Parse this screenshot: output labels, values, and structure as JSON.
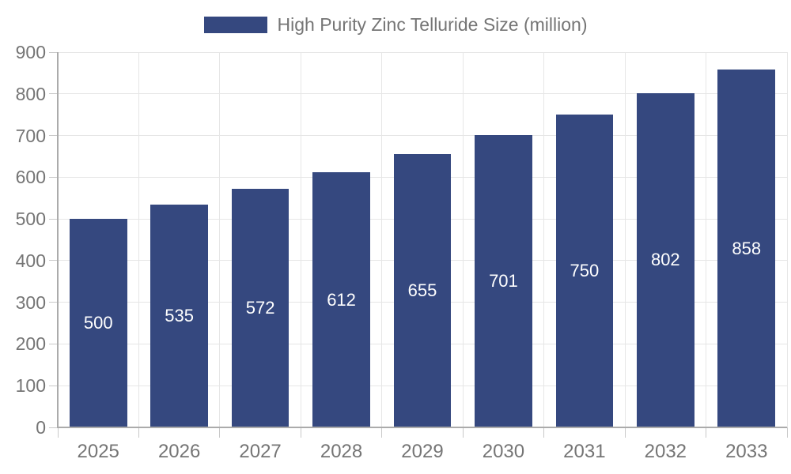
{
  "chart_data": {
    "type": "bar",
    "title": "",
    "legend": {
      "label": "High Purity Zinc Telluride Size (million)",
      "position": "top",
      "swatch_color": "#35487F"
    },
    "categories": [
      "2025",
      "2026",
      "2027",
      "2028",
      "2029",
      "2030",
      "2031",
      "2032",
      "2033"
    ],
    "values": [
      500,
      535,
      572,
      612,
      655,
      701,
      750,
      802,
      858
    ],
    "xlabel": "",
    "ylabel": "",
    "ylim": [
      0,
      900
    ],
    "ytick_step": 100,
    "ytick_labels": [
      "0",
      "100",
      "200",
      "300",
      "400",
      "500",
      "600",
      "700",
      "800",
      "900"
    ],
    "grid": true,
    "colors": {
      "bar": "#35487F",
      "value_label": "#ffffff",
      "axis_text": "#757575",
      "gridline": "#e6e6e6",
      "axis_line": "#ababab",
      "tick": "#c9c9c9",
      "background": "#ffffff"
    }
  }
}
